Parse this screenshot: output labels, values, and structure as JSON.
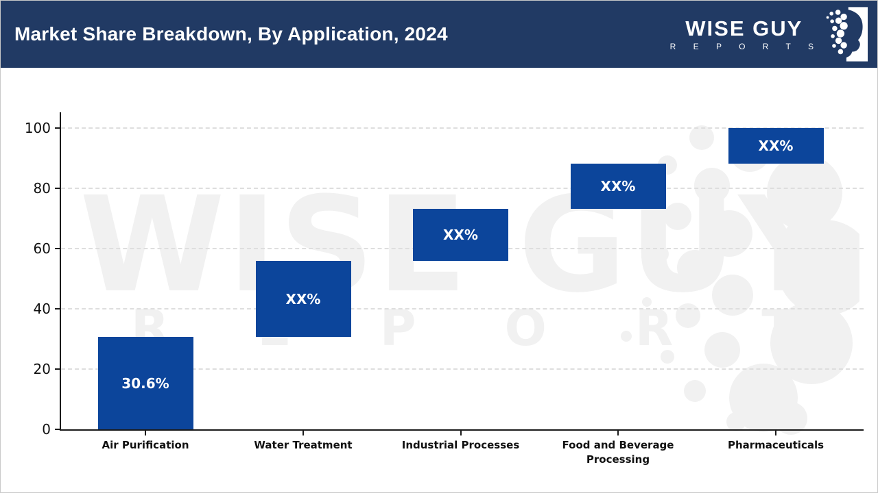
{
  "header": {
    "title": "Market Share Breakdown, By Application, 2024",
    "logo": {
      "line1": "WISE GUY",
      "line2": "R E P O R T S"
    }
  },
  "colors": {
    "header_bg": "#213a64",
    "header_text": "#ffffff",
    "bar": "#0c459b",
    "bar_label": "#ffffff",
    "grid": "#dedede",
    "axis": "#1a1a1a",
    "tick_text": "#111111",
    "watermark": "#f1f1f1"
  },
  "icons": {
    "logo_face": "dotted-head-profile",
    "watermark_face": "dotted-head-profile"
  },
  "watermark": {
    "line1": "WISE GUY",
    "line2": "R E P O R T S"
  },
  "chart_data": {
    "type": "bar",
    "subtype": "waterfall",
    "title": "Market Share Breakdown, By Application, 2024",
    "xlabel": "",
    "ylabel": "",
    "ylim": [
      0,
      106
    ],
    "yticks": [
      0,
      20,
      40,
      60,
      80,
      100
    ],
    "grid": "horizontal-dashed",
    "legend": "none",
    "categories": [
      "Air Purification",
      "Water Treatment",
      "Industrial Processes",
      "Food and Beverage Processing",
      "Pharmaceuticals"
    ],
    "segments": [
      {
        "category": "Air Purification",
        "start": 0,
        "end": 30.6,
        "label": "30.6%"
      },
      {
        "category": "Water Treatment",
        "start": 30.6,
        "end": 55.9,
        "label": "XX%"
      },
      {
        "category": "Industrial Processes",
        "start": 55.9,
        "end": 73.1,
        "label": "XX%"
      },
      {
        "category": "Food and Beverage Processing",
        "start": 73.1,
        "end": 88.2,
        "label": "XX%"
      },
      {
        "category": "Pharmaceuticals",
        "start": 88.2,
        "end": 100,
        "label": "XX%"
      }
    ]
  }
}
